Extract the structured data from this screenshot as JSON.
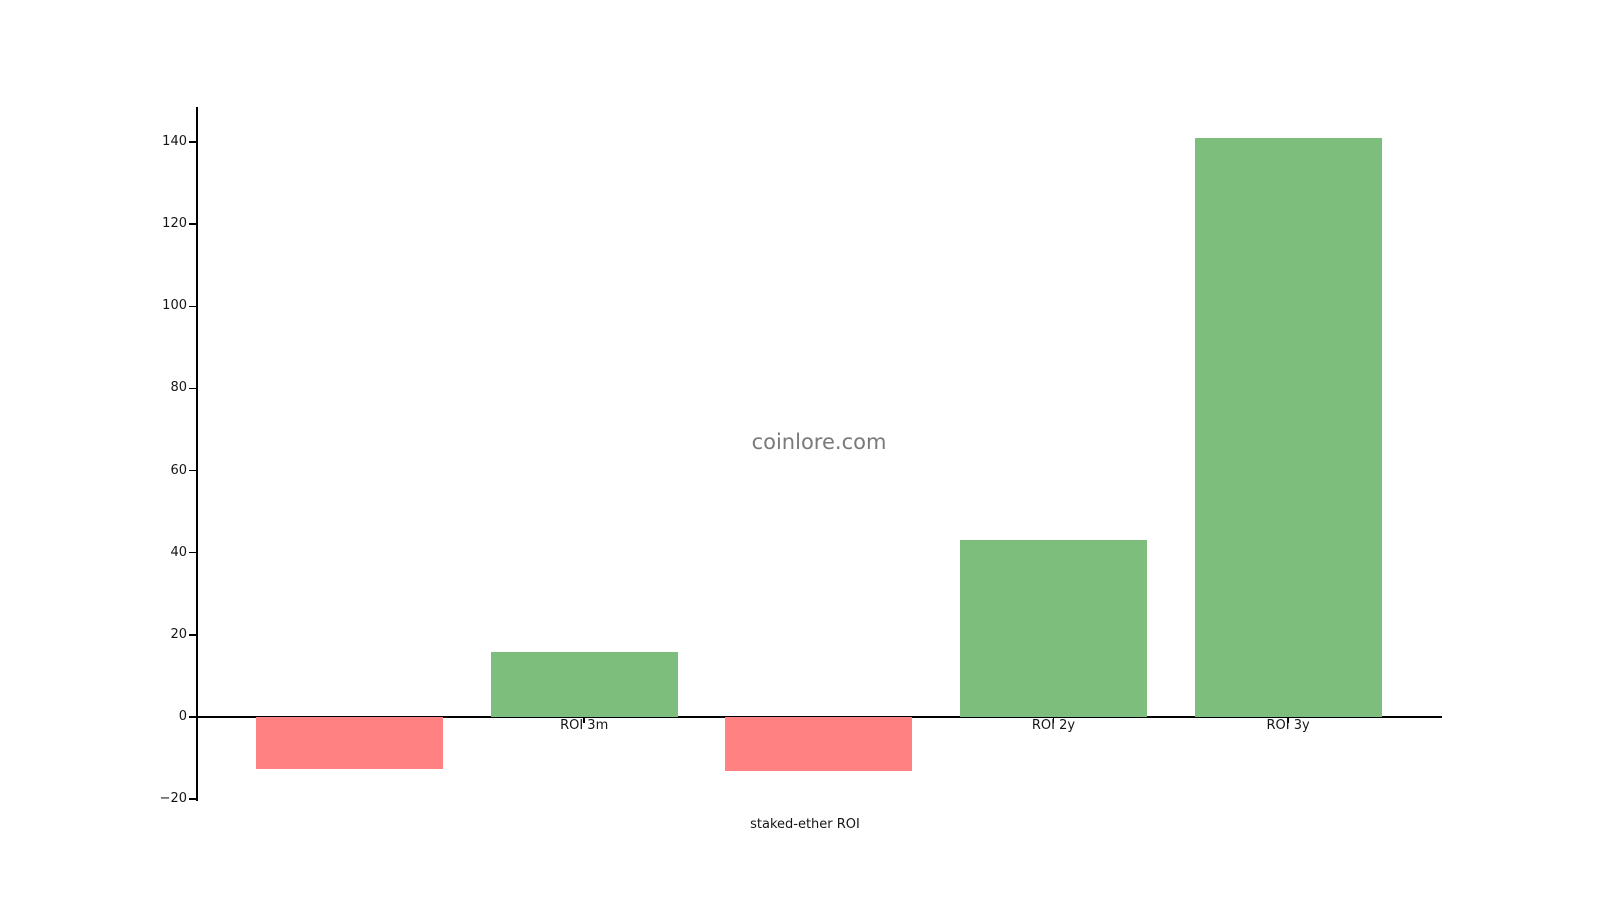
{
  "chart_data": {
    "type": "bar",
    "title": "",
    "xlabel": "staked-ether ROI",
    "ylabel": "",
    "watermark": "coinlore.com",
    "categories": [
      "",
      "ROI 3m",
      "",
      "ROI 2y",
      "ROI 3y"
    ],
    "values": [
      -12.6,
      15.9,
      -13.1,
      43.1,
      140.9
    ],
    "bar_colors": [
      "#FF8181",
      "#7DBE7D",
      "#FF8181",
      "#7DBE7D",
      "#7DBE7D"
    ],
    "positive_color": "#7DBE7D",
    "negative_color": "#FF8181",
    "yticks": [
      -20,
      0,
      20,
      40,
      60,
      80,
      100,
      120,
      140
    ],
    "ytick_labels": [
      "−20",
      "0",
      "20",
      "40",
      "60",
      "80",
      "100",
      "120",
      "140"
    ],
    "ylim": [
      -20.2,
      148.5
    ],
    "grid": false,
    "legend": null,
    "axis_color": "#000000",
    "text_color": "#161616",
    "watermark_color": "#7a7a7a",
    "background_color": "#ffffff"
  }
}
